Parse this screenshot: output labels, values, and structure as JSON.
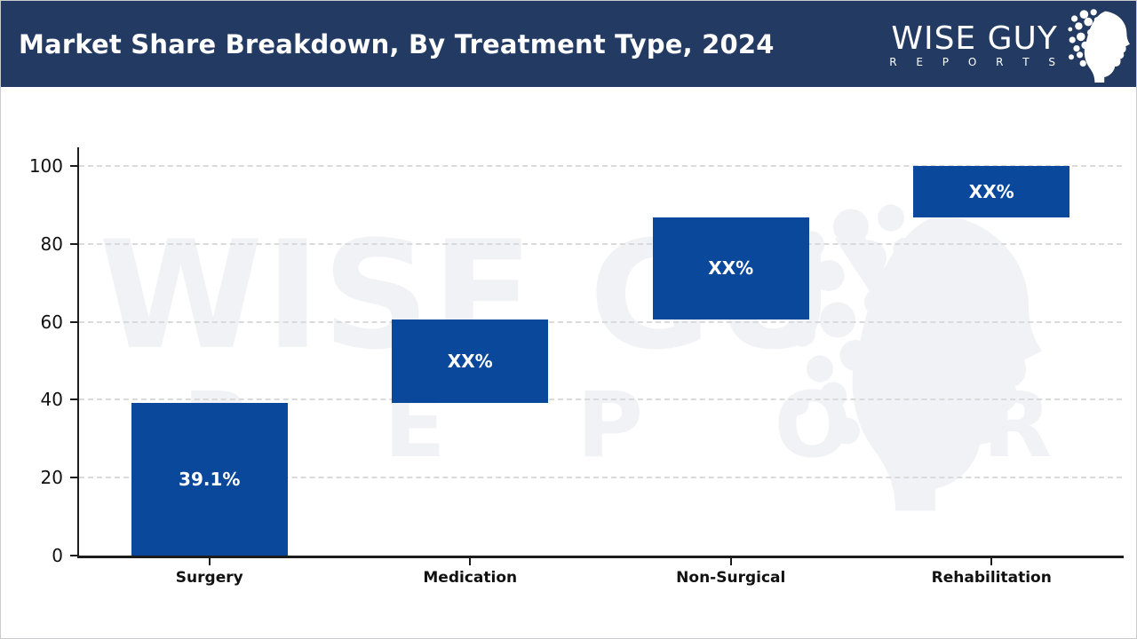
{
  "header": {
    "title": "Market Share Breakdown, By Treatment Type, 2024",
    "bg_color": "#233a63",
    "logo": {
      "line1": "WISE GUY",
      "line2": "R E P O R T S"
    }
  },
  "watermark": {
    "line1": "WISE GUY",
    "line2": "R E P O R T S"
  },
  "chart_data": {
    "type": "bar",
    "subtype": "waterfall",
    "title": "Market Share Breakdown, By Treatment Type, 2024",
    "categories": [
      "Surgery",
      "Medication",
      "Non-Surgical",
      "Rehabilitation"
    ],
    "segments": [
      {
        "category": "Surgery",
        "start": 0,
        "end": 39.1,
        "label": "39.1%"
      },
      {
        "category": "Medication",
        "start": 39.1,
        "end": 60.7,
        "label": "XX%"
      },
      {
        "category": "Non-Surgical",
        "start": 60.7,
        "end": 86.9,
        "label": "XX%"
      },
      {
        "category": "Rehabilitation",
        "start": 86.9,
        "end": 100,
        "label": "XX%"
      }
    ],
    "y_ticks": [
      0,
      20,
      40,
      60,
      80,
      100
    ],
    "ylim": [
      0,
      104.8
    ],
    "xlabel": "",
    "ylabel": "",
    "grid": true,
    "grid_color": "#dadada",
    "bar_color": "#0a489c",
    "bar_label_color": "#ffffff",
    "axis_color": "#1c1c1c",
    "legend": "none"
  }
}
